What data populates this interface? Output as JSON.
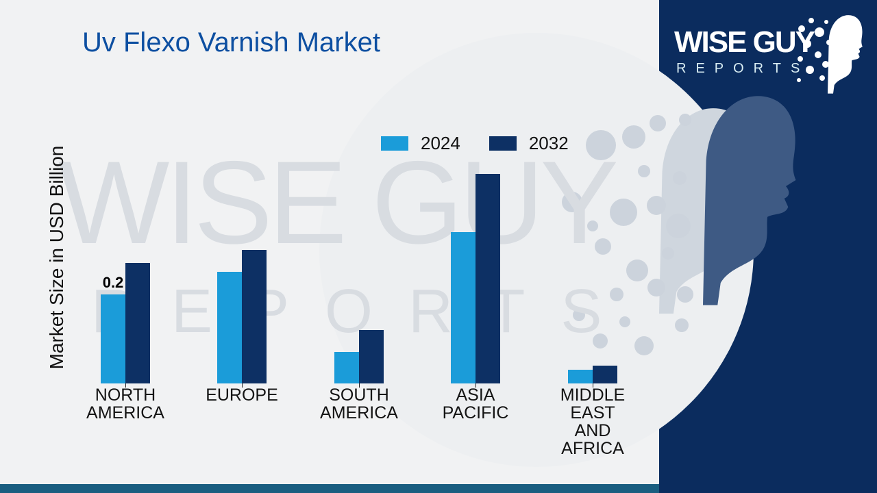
{
  "title": "Uv Flexo Varnish Market",
  "y_axis_label": "Market Size in USD Billion",
  "watermark": {
    "line1": "WISE GUY",
    "line2": "REPORTS"
  },
  "logo": {
    "line1": "WISE GUY",
    "line2": "REPORTS"
  },
  "colors": {
    "background": "#f1f2f3",
    "title_blue": "#0d4fa1",
    "band_navy": "#0b2c5e",
    "bar_2024_blue": "#1b9cd9",
    "bar_2032_navy": "#0d3064",
    "bottom_bar_teal": "#1a5e80",
    "watermark_gray": "#d8dce1",
    "watermark_circle": "#edeff1",
    "face_silhouette_blue": "#3e5a84",
    "face_silhouette_gray": "#cfd6de"
  },
  "chart_data": {
    "type": "bar",
    "title": "Uv Flexo Varnish Market",
    "ylabel": "Market Size in USD Billion",
    "unit": "USD Billion",
    "categories": [
      "NORTH AMERICA",
      "EUROPE",
      "SOUTH AMERICA",
      "ASIA PACIFIC",
      "MIDDLE EAST AND AFRICA"
    ],
    "series": [
      {
        "name": "2024",
        "color": "#1b9cd9",
        "values": [
          0.2,
          0.25,
          0.07,
          0.34,
          0.03
        ]
      },
      {
        "name": "2032",
        "color": "#0d3064",
        "values": [
          0.27,
          0.3,
          0.12,
          0.47,
          0.04
        ]
      }
    ],
    "data_labels": [
      {
        "category": "NORTH AMERICA",
        "series": "2024",
        "text": "0.2"
      }
    ],
    "values_estimated_from_bar_heights": true,
    "legend_position": "top-center",
    "grid": false
  }
}
